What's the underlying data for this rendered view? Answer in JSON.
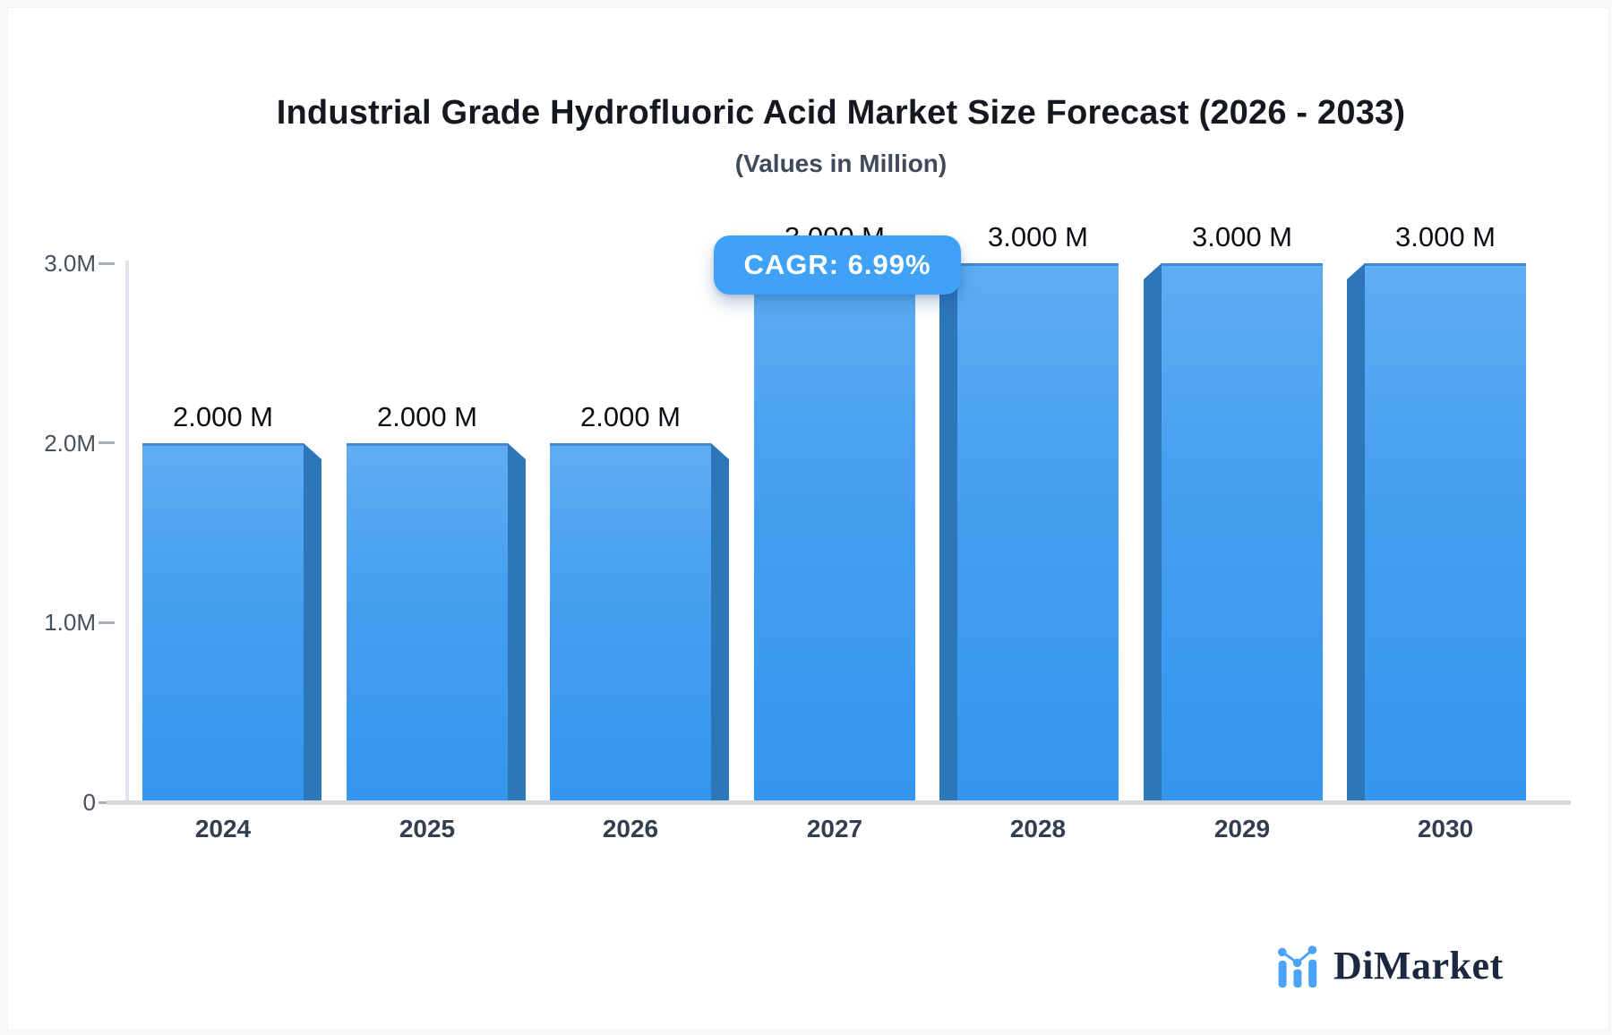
{
  "header": {
    "title": "Industrial Grade Hydrofluoric Acid Market Size Forecast (2026 - 2033)",
    "subtitle": "(Values in Million)"
  },
  "badge": {
    "label": "CAGR: 6.99%",
    "color": "#3fa2f6",
    "text_color": "#ffffff"
  },
  "logo": {
    "brand": "DiMarket",
    "icon": "bar-chart-icon",
    "icon_color": "#4aa3f7",
    "text_color": "#1c2840"
  },
  "colors": {
    "bar_face_top": "#5fadf2",
    "bar_face_bottom": "#3496ee",
    "bar_side": "#2d76ba",
    "axis_line": "#e1e5ea",
    "baseline": "#d5d9de",
    "tick_text": "#47505e",
    "year_text": "#333e50",
    "value_text": "#0b0e13"
  },
  "chart_data": {
    "type": "bar",
    "title": "Industrial Grade Hydrofluoric Acid Market Size Forecast (2026 - 2033)",
    "subtitle": "(Values in Million)",
    "unit": "Million",
    "categories": [
      "2024",
      "2025",
      "2026",
      "2027",
      "2028",
      "2029",
      "2030"
    ],
    "values": [
      2.0,
      2.0,
      2.0,
      3.0,
      3.0,
      3.0,
      3.0
    ],
    "value_labels": [
      "2.000 M",
      "2.000 M",
      "2.000 M",
      "3.000 M",
      "3.000 M",
      "3.000 M",
      "3.000 M"
    ],
    "annotation": "CAGR: 6.99%",
    "ylim": [
      0,
      3.0
    ],
    "yticks": [
      {
        "label": "0",
        "value": 0
      },
      {
        "label": "1.0M",
        "value": 1
      },
      {
        "label": "2.0M",
        "value": 2
      },
      {
        "label": "3.0M",
        "value": 3
      }
    ],
    "grid": false,
    "legend": null
  }
}
